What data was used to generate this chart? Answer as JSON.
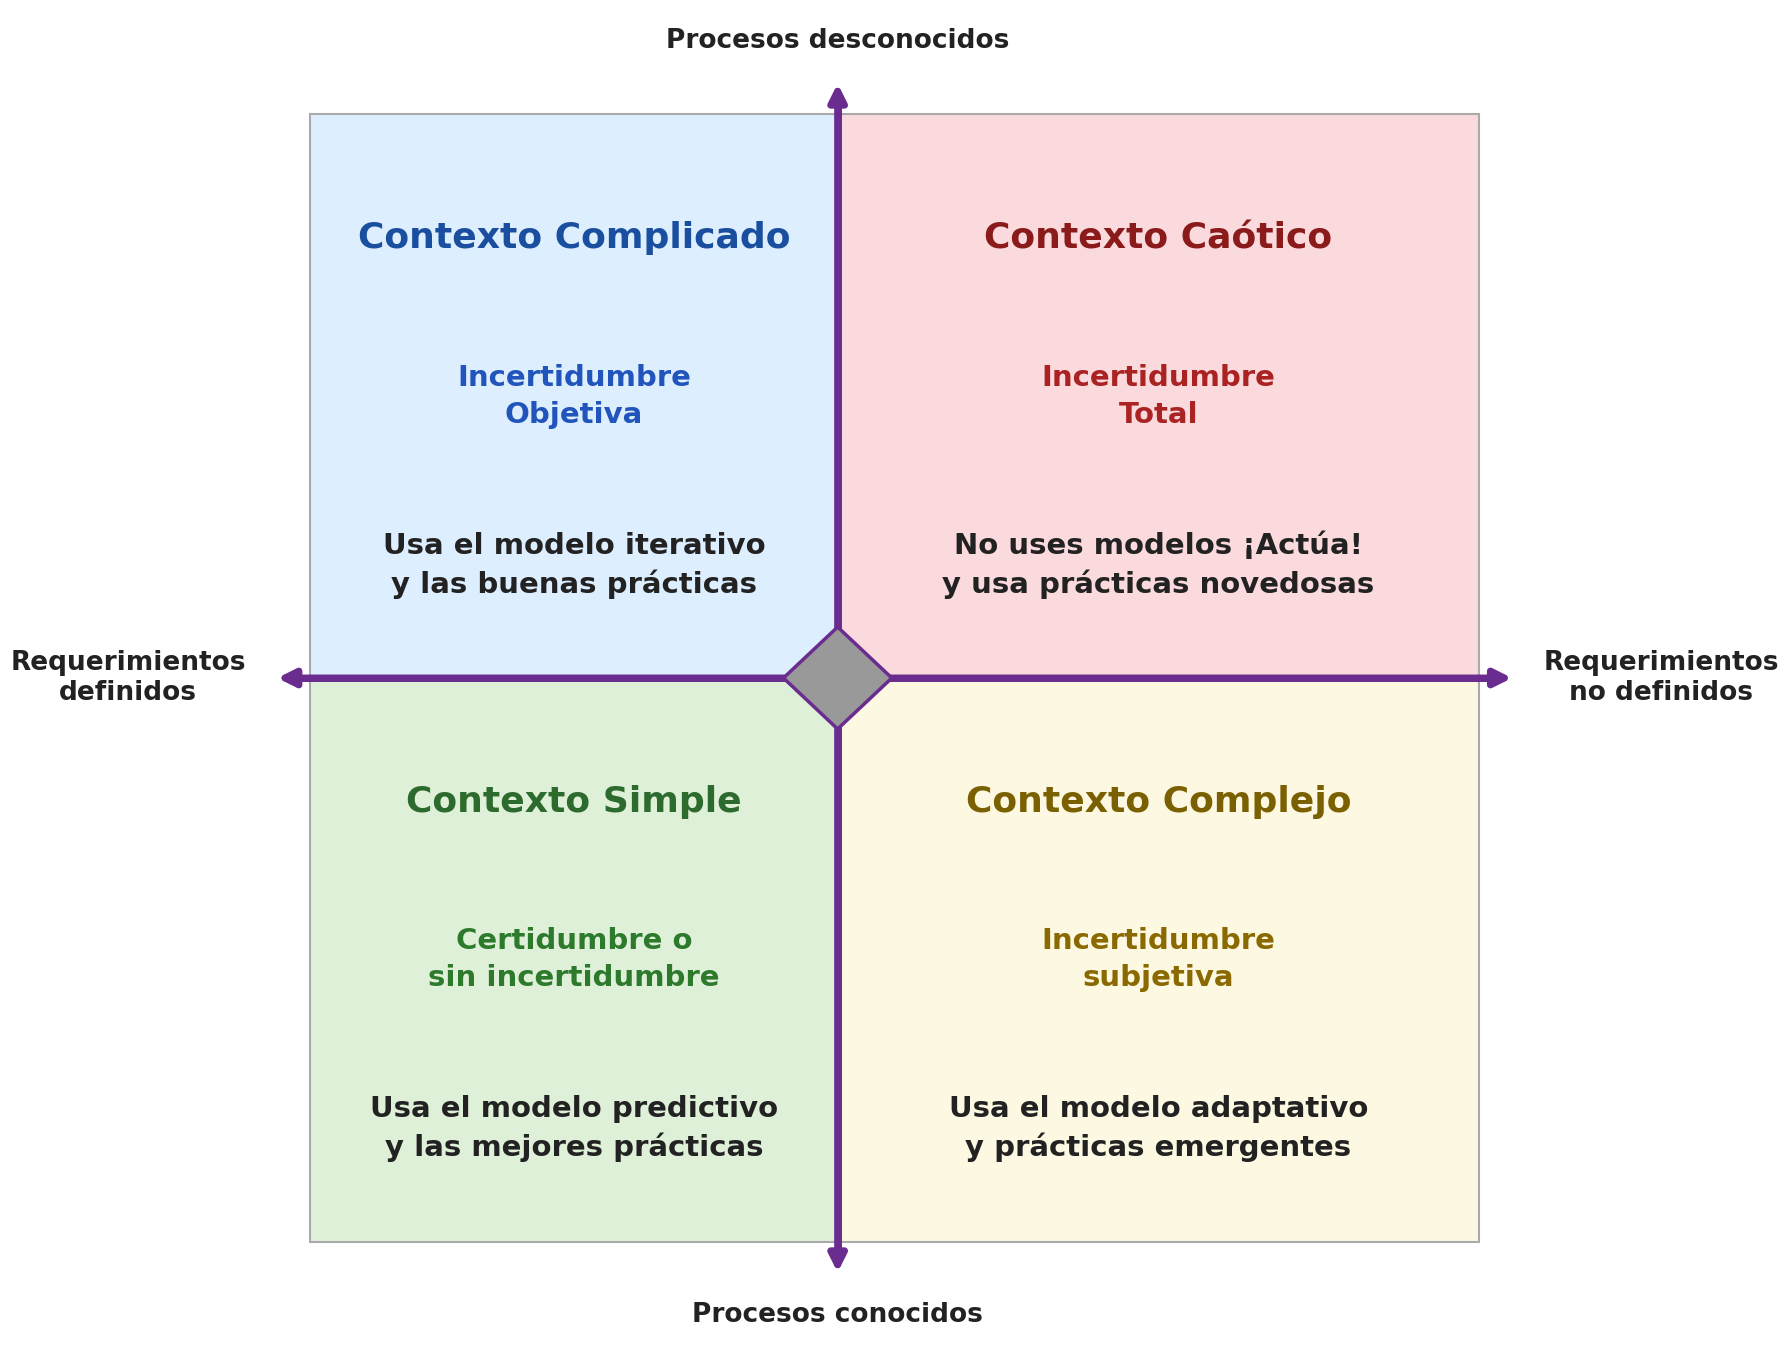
{
  "background_color": "#ffffff",
  "quadrant_colors": {
    "top_left": "#ddeeff",
    "top_right": "#fadadd",
    "bottom_left": "#dff0d8",
    "bottom_right": "#fdf8e1"
  },
  "quadrant_border_color": "#aaaaaa",
  "axis_color": "#6a2d8f",
  "axis_linewidth": 5,
  "diamond_color": "#999999",
  "top_left": {
    "title": "Contexto Complicado",
    "title_color": "#1a4fa0",
    "subtitle": "Incertidumbre\nObjetiva",
    "subtitle_color": "#2255bb",
    "body": "Usa el modelo iterativo\ny las buenas prácticas",
    "body_color": "#222222"
  },
  "top_right": {
    "title": "Contexto Caótico",
    "title_color": "#8b1a1a",
    "subtitle": "Incertidumbre\nTotal",
    "subtitle_color": "#aa2222",
    "body": "No uses modelos ¡Actúa!\ny usa prácticas novedosas",
    "body_color": "#222222"
  },
  "bottom_left": {
    "title": "Contexto Simple",
    "title_color": "#2d6a2d",
    "subtitle": "Certidumbre o\nsin incertidumbre",
    "subtitle_color": "#2d7a2d",
    "body": "Usa el modelo predictivo\ny las mejores prácticas",
    "body_color": "#222222"
  },
  "bottom_right": {
    "title": "Contexto Complejo",
    "title_color": "#7a6000",
    "subtitle": "Incertidumbre\nsubjetiva",
    "subtitle_color": "#8a6a00",
    "body": "Usa el modelo adaptativo\ny prácticas emergentes",
    "body_color": "#222222"
  },
  "axis_labels": {
    "top": "Procesos desconocidos",
    "bottom": "Procesos conocidos",
    "left": "Requerimientos\ndefinidos",
    "right": "Requerimientos\nno definidos"
  },
  "axis_label_color": "#222222",
  "axis_label_fontsize": 19,
  "title_fontsize": 26,
  "subtitle_fontsize": 21,
  "body_fontsize": 21
}
